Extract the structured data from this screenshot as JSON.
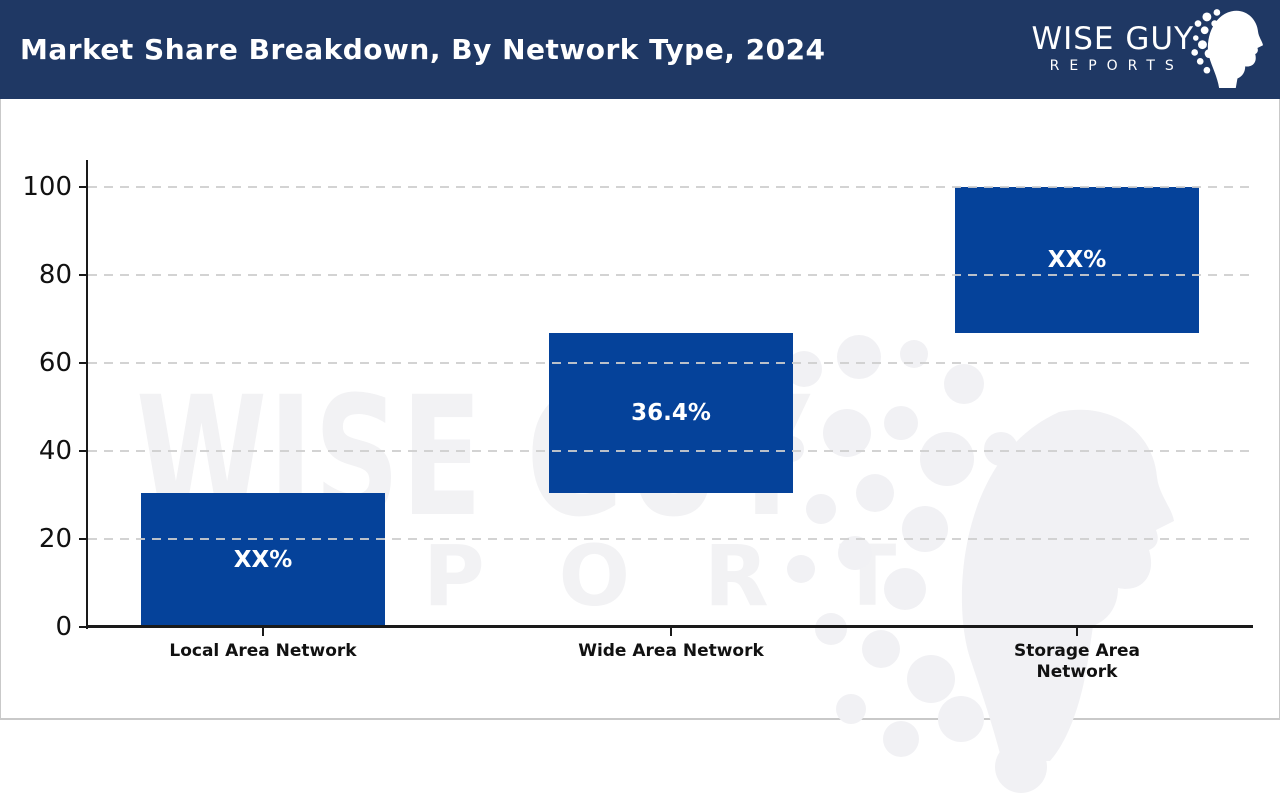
{
  "header": {
    "title": "Market Share Breakdown, By Network Type, 2024",
    "logo": {
      "wordmark": "WISE GUY",
      "subtext": "REPORTS"
    }
  },
  "watermark": {
    "wordmark": "WISE GUY",
    "subtext": "REPORTS"
  },
  "chart_data": {
    "type": "bar",
    "subtype": "waterfall",
    "title": "Market Share Breakdown, By Network Type, 2024",
    "xlabel": "",
    "ylabel": "",
    "ylim": [
      0,
      100
    ],
    "yticks": [
      0,
      20,
      40,
      60,
      80,
      100
    ],
    "grid": {
      "horizontal": true,
      "style": "dashed"
    },
    "legend": "none",
    "categories": [
      "Local Area Network",
      "Wide Area Network",
      "Storage Area\nNetwork"
    ],
    "bars": [
      {
        "category": "Local Area Network",
        "start": 0,
        "end": 30.4,
        "value_label": "XX%"
      },
      {
        "category": "Wide Area Network",
        "start": 30.4,
        "end": 66.8,
        "value_label": "36.4%"
      },
      {
        "category": "Storage Area\nNetwork",
        "start": 66.8,
        "end": 100,
        "value_label": "XX%"
      }
    ],
    "colors": {
      "bar": "#05429a",
      "bar_label": "#ffffff",
      "axis": "#1a1a1a",
      "grid": "#d2d2d2",
      "header_bg": "#1f3864",
      "watermark": "#f2f2f4"
    }
  }
}
